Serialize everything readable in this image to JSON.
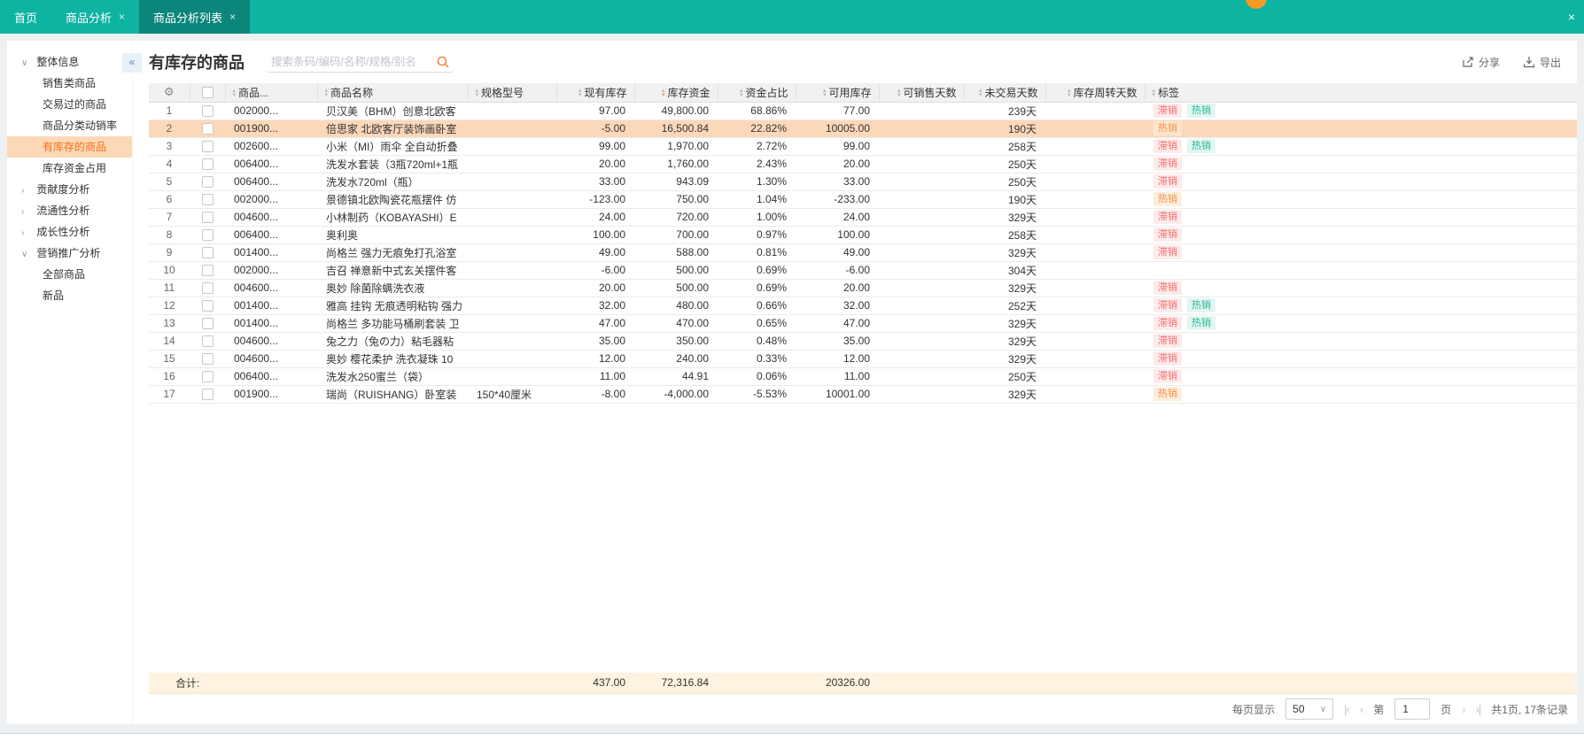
{
  "topbar": {
    "tabs": [
      {
        "label": "首页",
        "closable": false,
        "active": false
      },
      {
        "label": "商品分析",
        "closable": true,
        "active": false
      },
      {
        "label": "商品分析列表",
        "closable": true,
        "active": true
      }
    ],
    "close_glyph": "×"
  },
  "sidebar": {
    "collapse_glyph": "«",
    "groups": [
      {
        "label": "整体信息",
        "expanded": true,
        "children": [
          {
            "label": "销售类商品",
            "active": false
          },
          {
            "label": "交易过的商品",
            "active": false
          },
          {
            "label": "商品分类动销率",
            "active": false
          },
          {
            "label": "有库存的商品",
            "active": true
          },
          {
            "label": "库存资金占用",
            "active": false
          }
        ]
      },
      {
        "label": "贡献度分析",
        "expanded": false,
        "children": []
      },
      {
        "label": "流通性分析",
        "expanded": false,
        "children": []
      },
      {
        "label": "成长性分析",
        "expanded": false,
        "children": []
      },
      {
        "label": "营销推广分析",
        "expanded": true,
        "children": [
          {
            "label": "全部商品",
            "active": false
          },
          {
            "label": "新品",
            "active": false
          }
        ]
      }
    ]
  },
  "header": {
    "title": "有库存的商品",
    "search_placeholder": "搜索条码/编码/名称/规格/别名",
    "share_label": "分享",
    "export_label": "导出"
  },
  "table": {
    "columns": [
      {
        "key": "code",
        "label": "商品..."
      },
      {
        "key": "name",
        "label": "商品名称"
      },
      {
        "key": "spec",
        "label": "规格型号"
      },
      {
        "key": "stock",
        "label": "现有库存"
      },
      {
        "key": "fund",
        "label": "库存资金",
        "sorted": "desc"
      },
      {
        "key": "ratio",
        "label": "资金占比"
      },
      {
        "key": "avail",
        "label": "可用库存"
      },
      {
        "key": "sale_days",
        "label": "可销售天数"
      },
      {
        "key": "no_trade",
        "label": "未交易天数"
      },
      {
        "key": "turnover",
        "label": "库存周转天数"
      },
      {
        "key": "tags",
        "label": "标签"
      }
    ],
    "rows": [
      {
        "num": 1,
        "code": "002000...",
        "name": "贝汉美（BHM）创意北欧客",
        "spec": "",
        "stock": "97.00",
        "fund": "49,800.00",
        "ratio": "68.86%",
        "avail": "77.00",
        "sale_days": "",
        "no_trade": "239天",
        "turnover": "",
        "highlight": false,
        "tags": [
          {
            "label": "滞销",
            "type": "red"
          },
          {
            "label": "热销",
            "type": "teal"
          }
        ]
      },
      {
        "num": 2,
        "code": "001900...",
        "name": "倍思家 北欧客厅装饰画卧室",
        "spec": "",
        "stock": "-5.00",
        "fund": "16,500.84",
        "ratio": "22.82%",
        "avail": "10005.00",
        "sale_days": "",
        "no_trade": "190天",
        "turnover": "",
        "highlight": true,
        "tags": [
          {
            "label": "热销",
            "type": "orange"
          }
        ]
      },
      {
        "num": 3,
        "code": "002600...",
        "name": "小米（MI）雨伞 全自动折叠",
        "spec": "",
        "stock": "99.00",
        "fund": "1,970.00",
        "ratio": "2.72%",
        "avail": "99.00",
        "sale_days": "",
        "no_trade": "258天",
        "turnover": "",
        "highlight": false,
        "tags": [
          {
            "label": "滞销",
            "type": "red"
          },
          {
            "label": "热销",
            "type": "teal"
          }
        ]
      },
      {
        "num": 4,
        "code": "006400...",
        "name": "洗发水套装（3瓶720ml+1瓶",
        "spec": "",
        "stock": "20.00",
        "fund": "1,760.00",
        "ratio": "2.43%",
        "avail": "20.00",
        "sale_days": "",
        "no_trade": "250天",
        "turnover": "",
        "highlight": false,
        "tags": [
          {
            "label": "滞销",
            "type": "red"
          }
        ]
      },
      {
        "num": 5,
        "code": "006400...",
        "name": "洗发水720ml（瓶）",
        "spec": "",
        "stock": "33.00",
        "fund": "943.09",
        "ratio": "1.30%",
        "avail": "33.00",
        "sale_days": "",
        "no_trade": "250天",
        "turnover": "",
        "highlight": false,
        "tags": [
          {
            "label": "滞销",
            "type": "red"
          }
        ]
      },
      {
        "num": 6,
        "code": "002000...",
        "name": "景德镇北欧陶瓷花瓶摆件 仿",
        "spec": "",
        "stock": "-123.00",
        "fund": "750.00",
        "ratio": "1.04%",
        "avail": "-233.00",
        "sale_days": "",
        "no_trade": "190天",
        "turnover": "",
        "highlight": false,
        "tags": [
          {
            "label": "热销",
            "type": "orange"
          }
        ]
      },
      {
        "num": 7,
        "code": "004600...",
        "name": "小林制药（KOBAYASHI）E",
        "spec": "",
        "stock": "24.00",
        "fund": "720.00",
        "ratio": "1.00%",
        "avail": "24.00",
        "sale_days": "",
        "no_trade": "329天",
        "turnover": "",
        "highlight": false,
        "tags": [
          {
            "label": "滞销",
            "type": "red"
          }
        ]
      },
      {
        "num": 8,
        "code": "006400...",
        "name": "奥利奥",
        "spec": "",
        "stock": "100.00",
        "fund": "700.00",
        "ratio": "0.97%",
        "avail": "100.00",
        "sale_days": "",
        "no_trade": "258天",
        "turnover": "",
        "highlight": false,
        "tags": [
          {
            "label": "滞销",
            "type": "red"
          }
        ]
      },
      {
        "num": 9,
        "code": "001400...",
        "name": "尚格兰 强力无痕免打孔浴室",
        "spec": "",
        "stock": "49.00",
        "fund": "588.00",
        "ratio": "0.81%",
        "avail": "49.00",
        "sale_days": "",
        "no_trade": "329天",
        "turnover": "",
        "highlight": false,
        "tags": [
          {
            "label": "滞销",
            "type": "red"
          }
        ]
      },
      {
        "num": 10,
        "code": "002000...",
        "name": "吉召 禅意新中式玄关摆件客",
        "spec": "",
        "stock": "-6.00",
        "fund": "500.00",
        "ratio": "0.69%",
        "avail": "-6.00",
        "sale_days": "",
        "no_trade": "304天",
        "turnover": "",
        "highlight": false,
        "tags": []
      },
      {
        "num": 11,
        "code": "004600...",
        "name": "奥妙 除菌除螨洗衣液",
        "spec": "",
        "stock": "20.00",
        "fund": "500.00",
        "ratio": "0.69%",
        "avail": "20.00",
        "sale_days": "",
        "no_trade": "329天",
        "turnover": "",
        "highlight": false,
        "tags": [
          {
            "label": "滞销",
            "type": "red"
          }
        ]
      },
      {
        "num": 12,
        "code": "001400...",
        "name": "雅高 挂钩 无痕透明粘钩 强力",
        "spec": "",
        "stock": "32.00",
        "fund": "480.00",
        "ratio": "0.66%",
        "avail": "32.00",
        "sale_days": "",
        "no_trade": "252天",
        "turnover": "",
        "highlight": false,
        "tags": [
          {
            "label": "滞销",
            "type": "red"
          },
          {
            "label": "热销",
            "type": "teal"
          }
        ]
      },
      {
        "num": 13,
        "code": "001400...",
        "name": "尚格兰 多功能马桶刷套装 卫",
        "spec": "",
        "stock": "47.00",
        "fund": "470.00",
        "ratio": "0.65%",
        "avail": "47.00",
        "sale_days": "",
        "no_trade": "329天",
        "turnover": "",
        "highlight": false,
        "tags": [
          {
            "label": "滞销",
            "type": "red"
          },
          {
            "label": "热销",
            "type": "teal"
          }
        ]
      },
      {
        "num": 14,
        "code": "004600...",
        "name": "兔之力（兔の力）粘毛器粘",
        "spec": "",
        "stock": "35.00",
        "fund": "350.00",
        "ratio": "0.48%",
        "avail": "35.00",
        "sale_days": "",
        "no_trade": "329天",
        "turnover": "",
        "highlight": false,
        "tags": [
          {
            "label": "滞销",
            "type": "red"
          }
        ]
      },
      {
        "num": 15,
        "code": "004600...",
        "name": "奥妙 樱花柔护 洗衣凝珠 10",
        "spec": "",
        "stock": "12.00",
        "fund": "240.00",
        "ratio": "0.33%",
        "avail": "12.00",
        "sale_days": "",
        "no_trade": "329天",
        "turnover": "",
        "highlight": false,
        "tags": [
          {
            "label": "滞销",
            "type": "red"
          }
        ]
      },
      {
        "num": 16,
        "code": "006400...",
        "name": "洗发水250蜜兰（袋）",
        "spec": "",
        "stock": "11.00",
        "fund": "44.91",
        "ratio": "0.06%",
        "avail": "11.00",
        "sale_days": "",
        "no_trade": "250天",
        "turnover": "",
        "highlight": false,
        "tags": [
          {
            "label": "滞销",
            "type": "red"
          }
        ]
      },
      {
        "num": 17,
        "code": "001900...",
        "name": "瑞尚（RUISHANG）卧室装",
        "spec": "150*40厘米",
        "stock": "-8.00",
        "fund": "-4,000.00",
        "ratio": "-5.53%",
        "avail": "10001.00",
        "sale_days": "",
        "no_trade": "329天",
        "turnover": "",
        "highlight": false,
        "tags": [
          {
            "label": "热销",
            "type": "orange"
          }
        ]
      }
    ],
    "totals": {
      "label": "合计:",
      "stock": "437.00",
      "fund": "72,316.84",
      "avail": "20326.00"
    }
  },
  "pagination": {
    "per_page_label": "每页显示",
    "per_page_value": "50",
    "first_glyph": "|‹",
    "prev_glyph": "‹",
    "page_prefix": "第",
    "page_value": "1",
    "page_suffix": "页",
    "next_glyph": "›",
    "last_glyph": "›|",
    "summary": "共1页, 17条记录"
  }
}
